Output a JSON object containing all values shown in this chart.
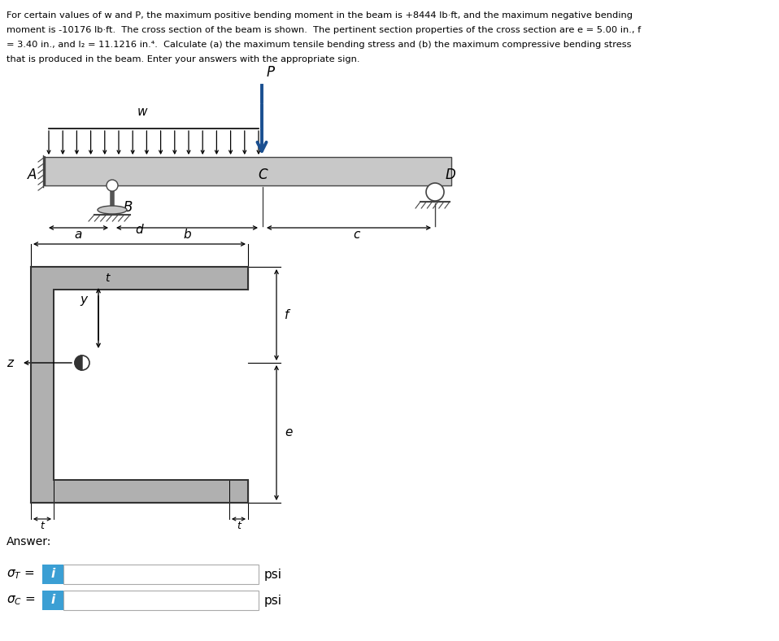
{
  "background": "#ffffff",
  "beam_color": "#c8c8c8",
  "beam_stroke": "#555555",
  "section_color": "#b0b0b0",
  "blue_arrow": "#1a4f90",
  "title_lines": [
    "For certain values of w and P, the maximum positive bending moment in the beam is +8444 lb·ft, and the maximum negative bending",
    "moment is -10176 lb·ft.  The cross section of the beam is shown.  The pertinent section properties of the cross section are e = 5.00 in., f",
    "= 3.40 in., and I₂ = 11.1216 in.⁴.  Calculate (a) the maximum tensile bending stress and (b) the maximum compressive bending stress",
    "that is produced in the beam. Enter your answers with the appropriate sign."
  ],
  "answer_label": "Answer:",
  "psi_label": "psi"
}
